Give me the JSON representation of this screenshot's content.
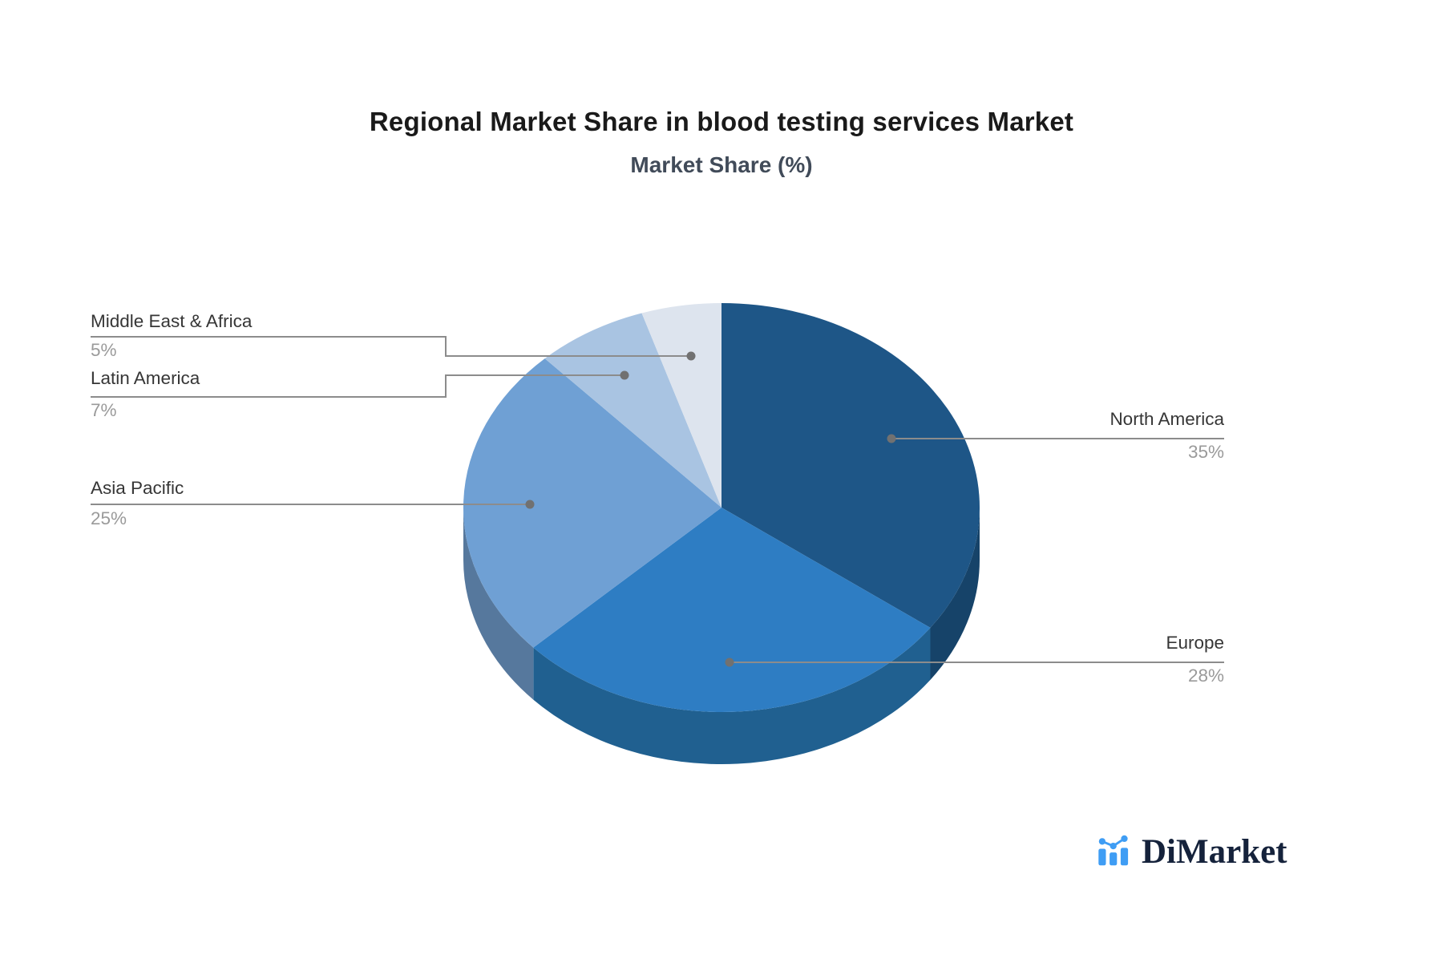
{
  "chart_data": {
    "type": "pie",
    "title": "Regional Market Share in blood testing services Market",
    "subtitle": "Market Share (%)",
    "style": "3d-pie, starts at 12 o'clock, clockwise",
    "legend_position": "callout-labels",
    "slices": [
      {
        "label": "North America",
        "value": 35,
        "pct": "35%",
        "color": "#1e5687",
        "side_color": "#164369"
      },
      {
        "label": "Europe",
        "value": 28,
        "pct": "28%",
        "color": "#2e7dc3",
        "side_color": "#206090"
      },
      {
        "label": "Asia Pacific",
        "value": 25,
        "pct": "25%",
        "color": "#6fa0d4",
        "side_color": "#56789d"
      },
      {
        "label": "Latin America",
        "value": 7,
        "pct": "7%",
        "color": "#a9c4e2",
        "side_color": "#8aa7c4"
      },
      {
        "label": "Middle East & Africa",
        "value": 5,
        "pct": "5%",
        "color": "#dde4ee",
        "side_color": "#b9c3d1"
      }
    ],
    "colors": {
      "connector_line": "#8c8c8c",
      "connector_dot": "#717171",
      "label_text": "#363636",
      "pct_text": "#9a9a9a",
      "title_text": "#1a1a1a",
      "subtitle_text": "#414b59"
    }
  },
  "branding": {
    "name": "DiMarket",
    "icon": "bar-line-chart-icon",
    "icon_color": "#3f9df4",
    "text_color": "#15223b"
  }
}
